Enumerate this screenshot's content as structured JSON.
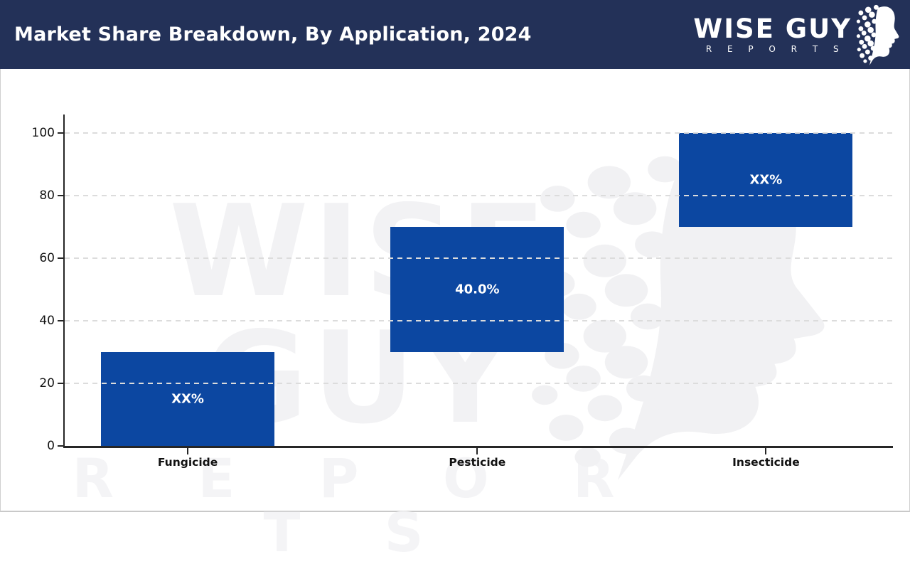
{
  "header": {
    "title": "Market Share Breakdown, By Application, 2024",
    "logo": {
      "wordmark": "WISE GUY",
      "subtitle": "R E P O R T S"
    }
  },
  "watermark": {
    "line1": "WISE GUY",
    "line2": "R E P O R T S"
  },
  "chart_data": {
    "type": "bar",
    "variant": "floating-range-bars",
    "title": "Market Share Breakdown, By Application, 2024",
    "categories": [
      "Fungicide",
      "Pesticide",
      "Insecticide"
    ],
    "series": [
      {
        "name": "Market share segment (%)",
        "bar_bottom": [
          0,
          30,
          70
        ],
        "bar_top": [
          30,
          70,
          100
        ],
        "bar_labels": [
          "XX%",
          "40.0%",
          "XX%"
        ]
      }
    ],
    "xlabel": "",
    "ylabel": "",
    "ylim": [
      0,
      100
    ],
    "yticks": [
      0,
      20,
      40,
      60,
      80,
      100
    ],
    "grid": "horizontal-dashed",
    "legend": "none",
    "colors": {
      "bar": "#0c47a1",
      "bar_label": "#ffffff",
      "grid": "#dcdcdc",
      "axis": "#262626",
      "header_bg": "#233158",
      "watermark": "#f2f2f4"
    }
  }
}
